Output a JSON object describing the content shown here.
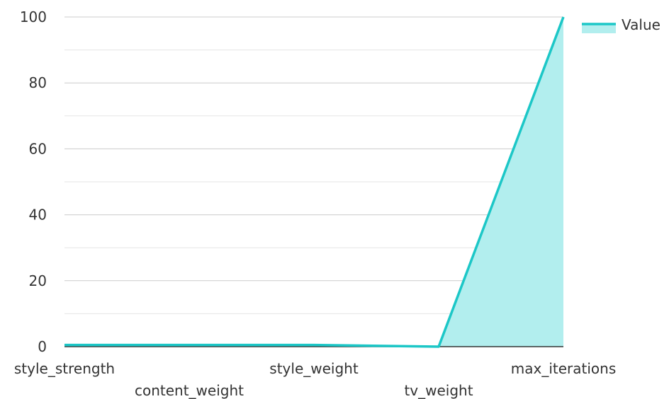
{
  "chart_data": {
    "type": "area",
    "categories": [
      "style_strength",
      "content_weight",
      "style_weight",
      "tv_weight",
      "max_iterations"
    ],
    "series": [
      {
        "name": "Value",
        "values": [
          0.5,
          0.5,
          0.5,
          0.0,
          100
        ]
      }
    ],
    "ylim": [
      0,
      100
    ],
    "yticks": [
      "0",
      "20",
      "40",
      "60",
      "80",
      "100"
    ],
    "grid": true,
    "legend_position": "top-right",
    "colors": {
      "line": "#1cc7c7",
      "fill": "#b2eeee",
      "grid": "#cccccc",
      "minor_grid": "#e5e5e5",
      "axis": "#333333"
    }
  }
}
